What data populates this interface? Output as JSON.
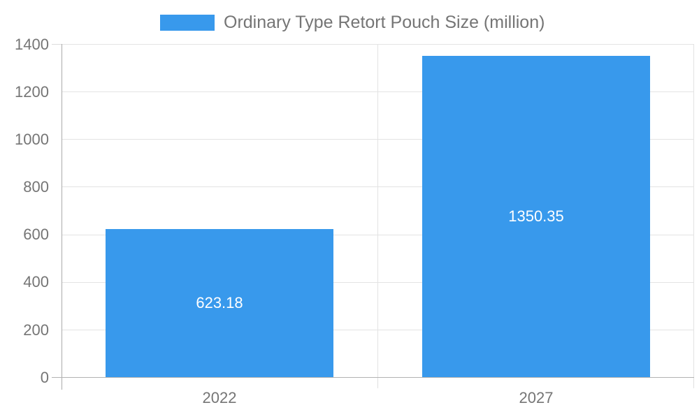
{
  "legend": {
    "label": "Ordinary Type Retort Pouch Size (million)"
  },
  "chart_data": {
    "type": "bar",
    "title": "Ordinary Type Retort Pouch Size (million)",
    "categories": [
      "2022",
      "2027"
    ],
    "values": [
      623.18,
      1350.35
    ],
    "value_labels": [
      "623.18",
      "1350.35"
    ],
    "series": [
      {
        "name": "Ordinary Type Retort Pouch Size (million)",
        "values": [
          623.18,
          1350.35
        ]
      }
    ],
    "ylim": [
      0,
      1400
    ],
    "yticks": [
      0,
      200,
      400,
      600,
      800,
      1000,
      1200,
      1400
    ],
    "ytick_labels": [
      "0",
      "200",
      "400",
      "600",
      "800",
      "1000",
      "1200",
      "1400"
    ],
    "xlabel": "",
    "ylabel": "",
    "grid": "on",
    "legend_position": "top",
    "colors": {
      "bar": "#3899EC",
      "bar_value_text": "#ffffff",
      "axis_text": "#757575",
      "grid_line": "#e3e3e3",
      "axis_line": "#b3b3b3",
      "background": "#ffffff"
    }
  }
}
